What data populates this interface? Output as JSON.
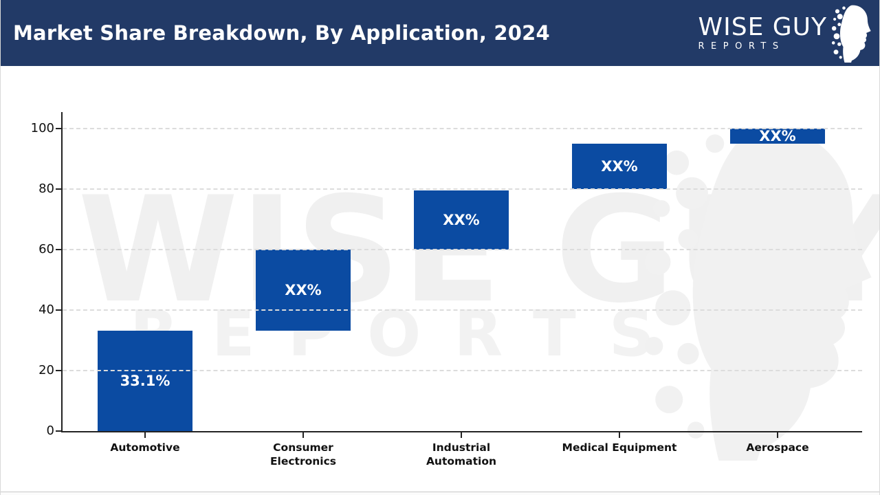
{
  "header": {
    "title": "Market Share Breakdown, By Application, 2024",
    "logo": {
      "name": "WISE GUY",
      "tagline": "REPORTS"
    }
  },
  "watermark": {
    "name": "WISE GUY",
    "tagline": "REPORTS"
  },
  "colors": {
    "header_bg": "#223a67",
    "bar": "#0b4ba2",
    "bar_label": "#ffffff",
    "gridline": "#dcdcdc",
    "axis": "#222222",
    "watermark": "#f0f0f0"
  },
  "chart_data": {
    "type": "bar",
    "variant": "waterfall",
    "title": "Market Share Breakdown, By Application, 2024",
    "categories": [
      "Automotive",
      "Consumer Electronics",
      "Industrial Automation",
      "Medical Equipment",
      "Aerospace"
    ],
    "category_lines": [
      [
        "Automotive"
      ],
      [
        "Consumer",
        "Electronics"
      ],
      [
        "Industrial",
        "Automation"
      ],
      [
        "Medical Equipment"
      ],
      [
        "Aerospace"
      ]
    ],
    "bars": [
      {
        "category": "Automotive",
        "start": 0,
        "end": 33.1,
        "label": "33.1%"
      },
      {
        "category": "Consumer Electronics",
        "start": 33.1,
        "end": 60,
        "label": "XX%"
      },
      {
        "category": "Industrial Automation",
        "start": 60,
        "end": 79.5,
        "label": "XX%"
      },
      {
        "category": "Medical Equipment",
        "start": 80,
        "end": 95,
        "label": "XX%"
      },
      {
        "category": "Aerospace",
        "start": 95,
        "end": 100,
        "label": "XX%"
      }
    ],
    "xlabel": "",
    "ylabel": "",
    "ylim": [
      0,
      100
    ],
    "yticks": [
      0,
      20,
      40,
      60,
      80,
      100
    ],
    "legend": "none",
    "grid": "horizontal-dashed"
  }
}
